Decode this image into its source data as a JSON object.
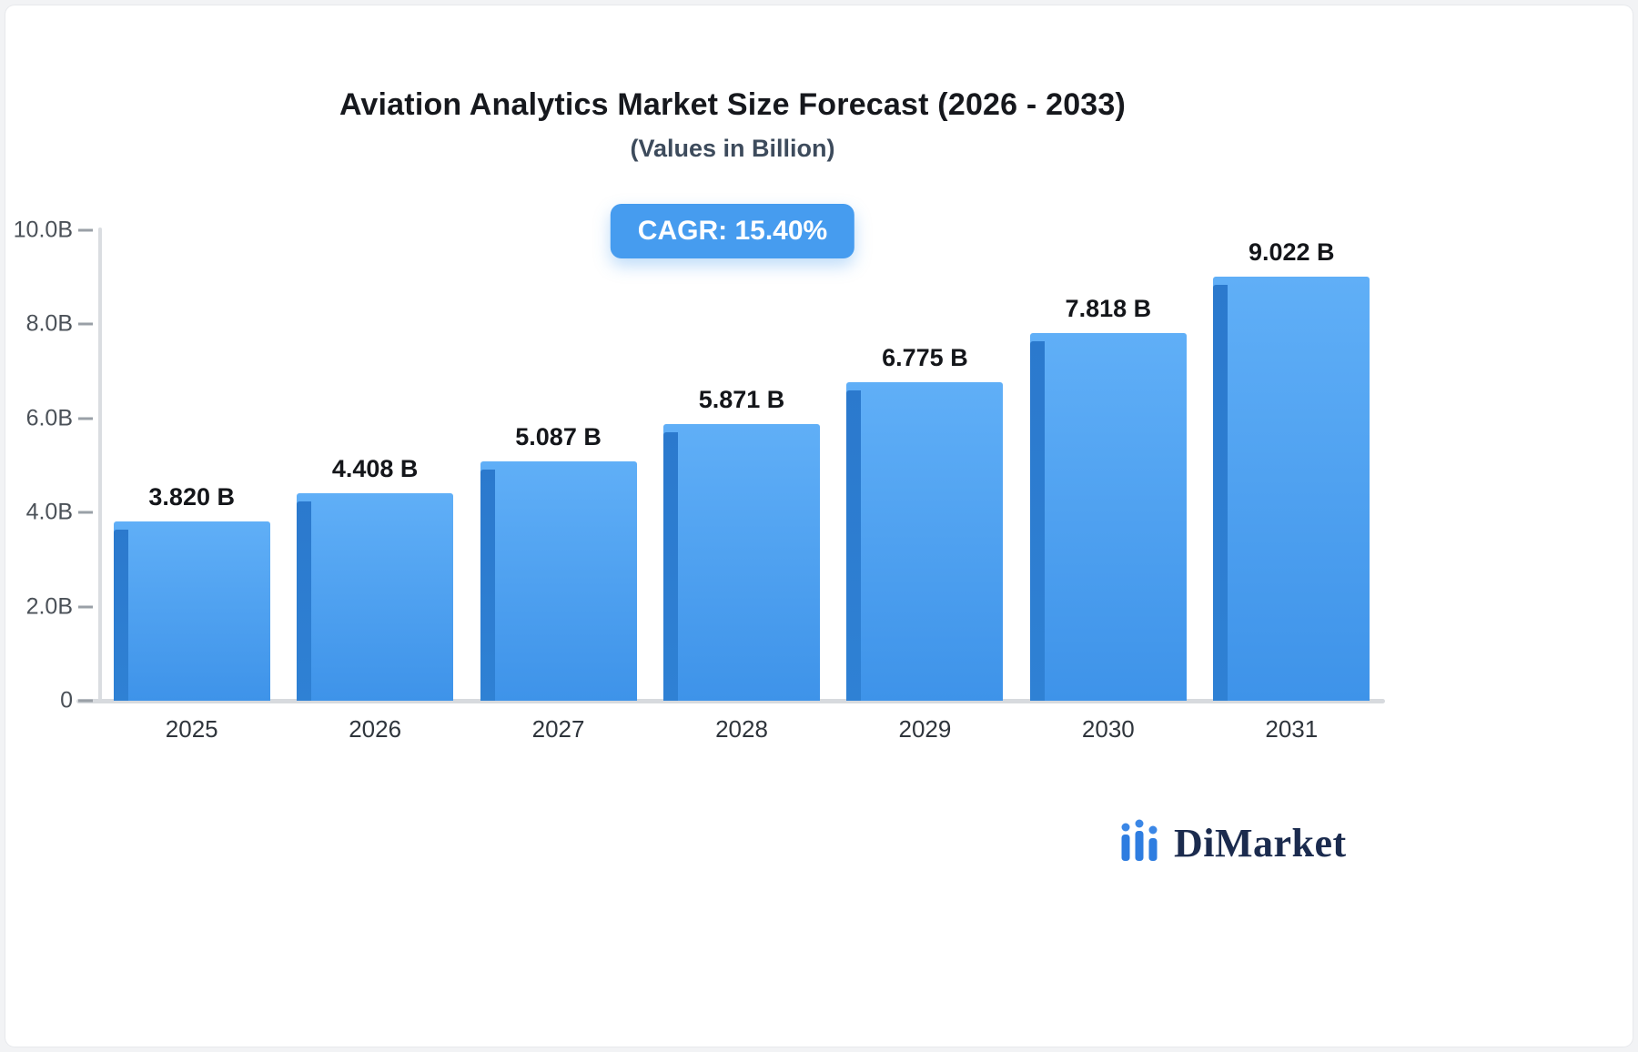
{
  "header": {
    "title": "Aviation Analytics Market Size Forecast (2026 - 2033)",
    "subtitle": "(Values in Billion)",
    "cagr_badge": "CAGR: 15.40%"
  },
  "chart_data": {
    "type": "bar",
    "categories": [
      "2025",
      "2026",
      "2027",
      "2028",
      "2029",
      "2030",
      "2031"
    ],
    "values": [
      3.82,
      4.408,
      5.087,
      5.871,
      6.775,
      7.818,
      9.022
    ],
    "value_labels": [
      "3.820 B",
      "4.408 B",
      "5.087 B",
      "5.871 B",
      "6.775 B",
      "7.818 B",
      "9.022 B"
    ],
    "title": "Aviation Analytics Market Size Forecast (2026 - 2033)",
    "xlabel": "",
    "ylabel": "",
    "ylim": [
      0,
      10
    ],
    "yticks": [
      0,
      2,
      4,
      6,
      8,
      10
    ],
    "ytick_labels": [
      "0",
      "2.0B",
      "4.0B",
      "6.0B",
      "8.0B",
      "10.0B"
    ],
    "grid": false,
    "legend": "none",
    "bar_color_top": "#60aff7",
    "bar_color_bottom": "#3e93e9",
    "bar_side_color": "#2b79cd"
  },
  "footer": {
    "logo_text": "DiMarket"
  }
}
